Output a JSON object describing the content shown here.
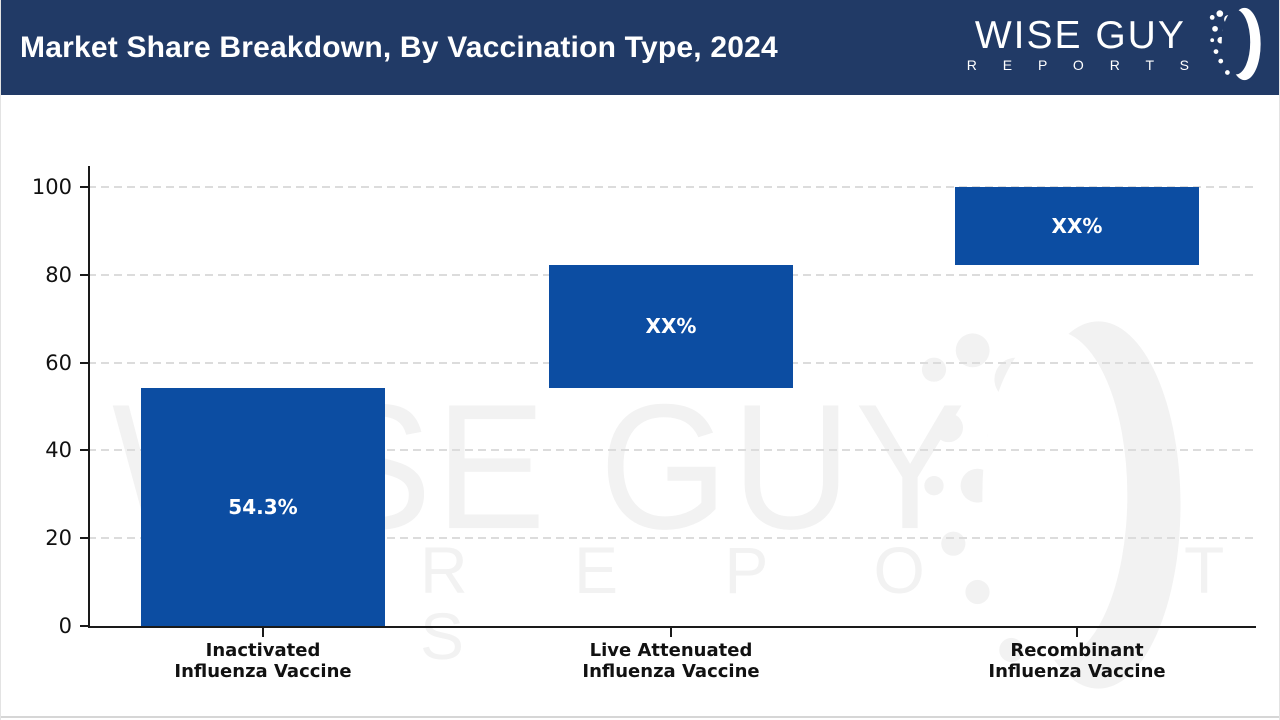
{
  "header": {
    "title": "Market Share Breakdown, By Vaccination Type, 2024",
    "bg_color": "#213a66",
    "text_color": "#ffffff",
    "logo": {
      "name": "WISE GUY",
      "sub": "R E P O R T S"
    }
  },
  "watermark": {
    "big": "WISE GUY",
    "sub": "R E P O R T S"
  },
  "chart_data": {
    "type": "bar",
    "variant": "waterfall",
    "title": "Market Share Breakdown, By Vaccination Type, 2024",
    "categories": [
      {
        "lines": [
          "Inactivated",
          "Influenza Vaccine"
        ]
      },
      {
        "lines": [
          "Live Attenuated",
          "Influenza Vaccine"
        ]
      },
      {
        "lines": [
          "Recombinant",
          "Influenza Vaccine"
        ]
      }
    ],
    "values": [
      {
        "start": 0,
        "end": 54.3,
        "label": "54.3%"
      },
      {
        "start": 54.3,
        "end": 82.3,
        "label": "XX%"
      },
      {
        "start": 82.3,
        "end": 100,
        "label": "XX%"
      }
    ],
    "yticks": [
      0,
      20,
      40,
      60,
      80,
      100
    ],
    "ylim": [
      0,
      105
    ],
    "xlabel": "",
    "ylabel": "",
    "bar_color": "#0c4da2",
    "bar_label_color": "#ffffff",
    "grid": {
      "axis": "y",
      "style": "dashed",
      "color": "#dcdcdc"
    },
    "legend": "none"
  }
}
